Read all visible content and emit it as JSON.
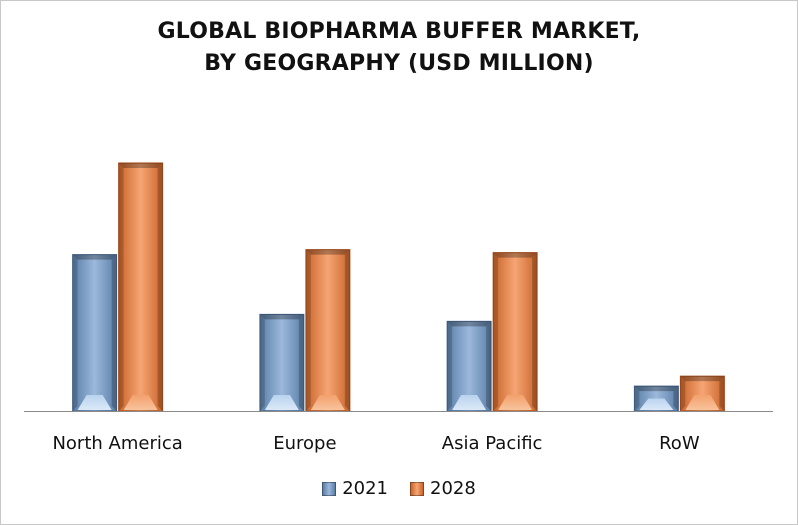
{
  "chart_data": {
    "type": "bar",
    "title_lines": [
      "GLOBAL BIOPHARMA BUFFER MARKET,",
      "BY GEOGRAPHY (USD MILLION)"
    ],
    "categories": [
      "North America",
      "Europe",
      "Asia Pacific",
      "RoW"
    ],
    "series": [
      {
        "name": "2021",
        "color": "#7a9cc4",
        "values": [
          157,
          97,
          90,
          25
        ]
      },
      {
        "name": "2028",
        "color": "#ef8a4c",
        "values": [
          249,
          162,
          159,
          35
        ]
      }
    ],
    "ylim": [
      0,
      260
    ],
    "grid": false,
    "legend_position": "bottom"
  }
}
